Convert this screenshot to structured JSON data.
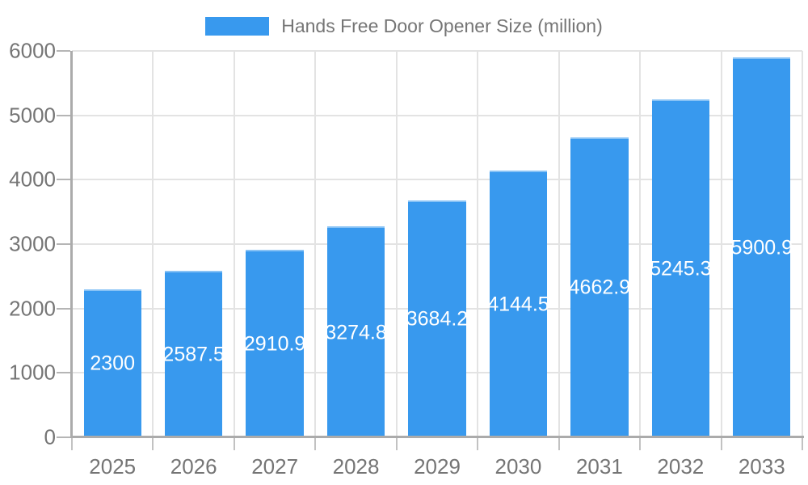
{
  "chart_data": {
    "type": "bar",
    "title": "",
    "legend": "Hands Free Door Opener Size (million)",
    "legend_position": "top",
    "categories": [
      "2025",
      "2026",
      "2027",
      "2028",
      "2029",
      "2030",
      "2031",
      "2032",
      "2033"
    ],
    "values": [
      2300,
      2587.5,
      2910.9,
      3274.8,
      3684.2,
      4144.5,
      4662.9,
      5245.3,
      5900.9
    ],
    "xlabel": "",
    "ylabel": "",
    "ylim": [
      0,
      6000
    ],
    "yticks": [
      0,
      1000,
      2000,
      3000,
      4000,
      5000,
      6000
    ],
    "grid": "on",
    "value_labels": "inside-bar-centered",
    "colors": {
      "bar": "#3899EE",
      "value_label": "#FFFFFF",
      "axis_line": "#ABABAB",
      "gridline": "#E3E3E3",
      "tick": "#B5B5B5",
      "axis_text": "#757575",
      "legend_text": "#757575",
      "background": "#FFFFFF"
    }
  }
}
